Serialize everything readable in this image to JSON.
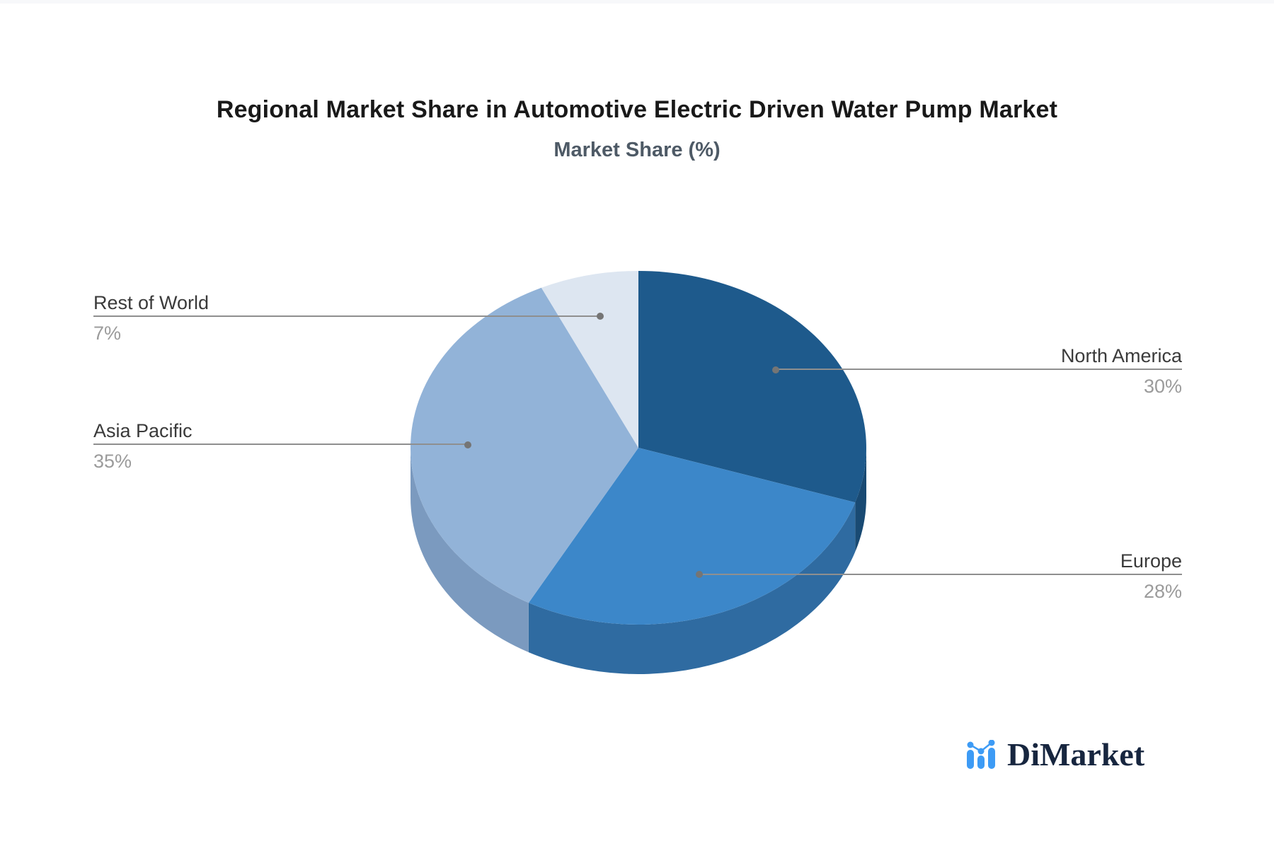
{
  "chart_data": {
    "type": "pie",
    "style": "3d",
    "title": "Regional Market Share in Automotive Electric Driven Water Pump Market",
    "subtitle": "Market Share (%)",
    "unit": "%",
    "start_angle": "top",
    "direction": "clockwise",
    "legend_position": "callout-labels-left-right",
    "slices": [
      {
        "label": "North America",
        "value": 30,
        "value_label": "30%",
        "color": "#1e5a8c",
        "side_color": "#194a73"
      },
      {
        "label": "Europe",
        "value": 28,
        "value_label": "28%",
        "color": "#3c87c9",
        "side_color": "#2f6ba1"
      },
      {
        "label": "Asia Pacific",
        "value": 35,
        "value_label": "35%",
        "color": "#92b3d8",
        "side_color": "#7b9abf"
      },
      {
        "label": "Rest of World",
        "value": 7,
        "value_label": "7%",
        "color": "#dde6f1",
        "side_color": "#c6d4e6"
      }
    ]
  },
  "branding": {
    "name": "DiMarket",
    "icon": "bar-chart-logo-icon",
    "icon_color": "#3d9bf5",
    "text_color": "#17263f"
  },
  "colors": {
    "background": "#ffffff",
    "leader_line": "#8f8f8f",
    "leader_dot": "#757575",
    "label_text": "#3a3a3a",
    "value_text": "#9b9b9b"
  }
}
